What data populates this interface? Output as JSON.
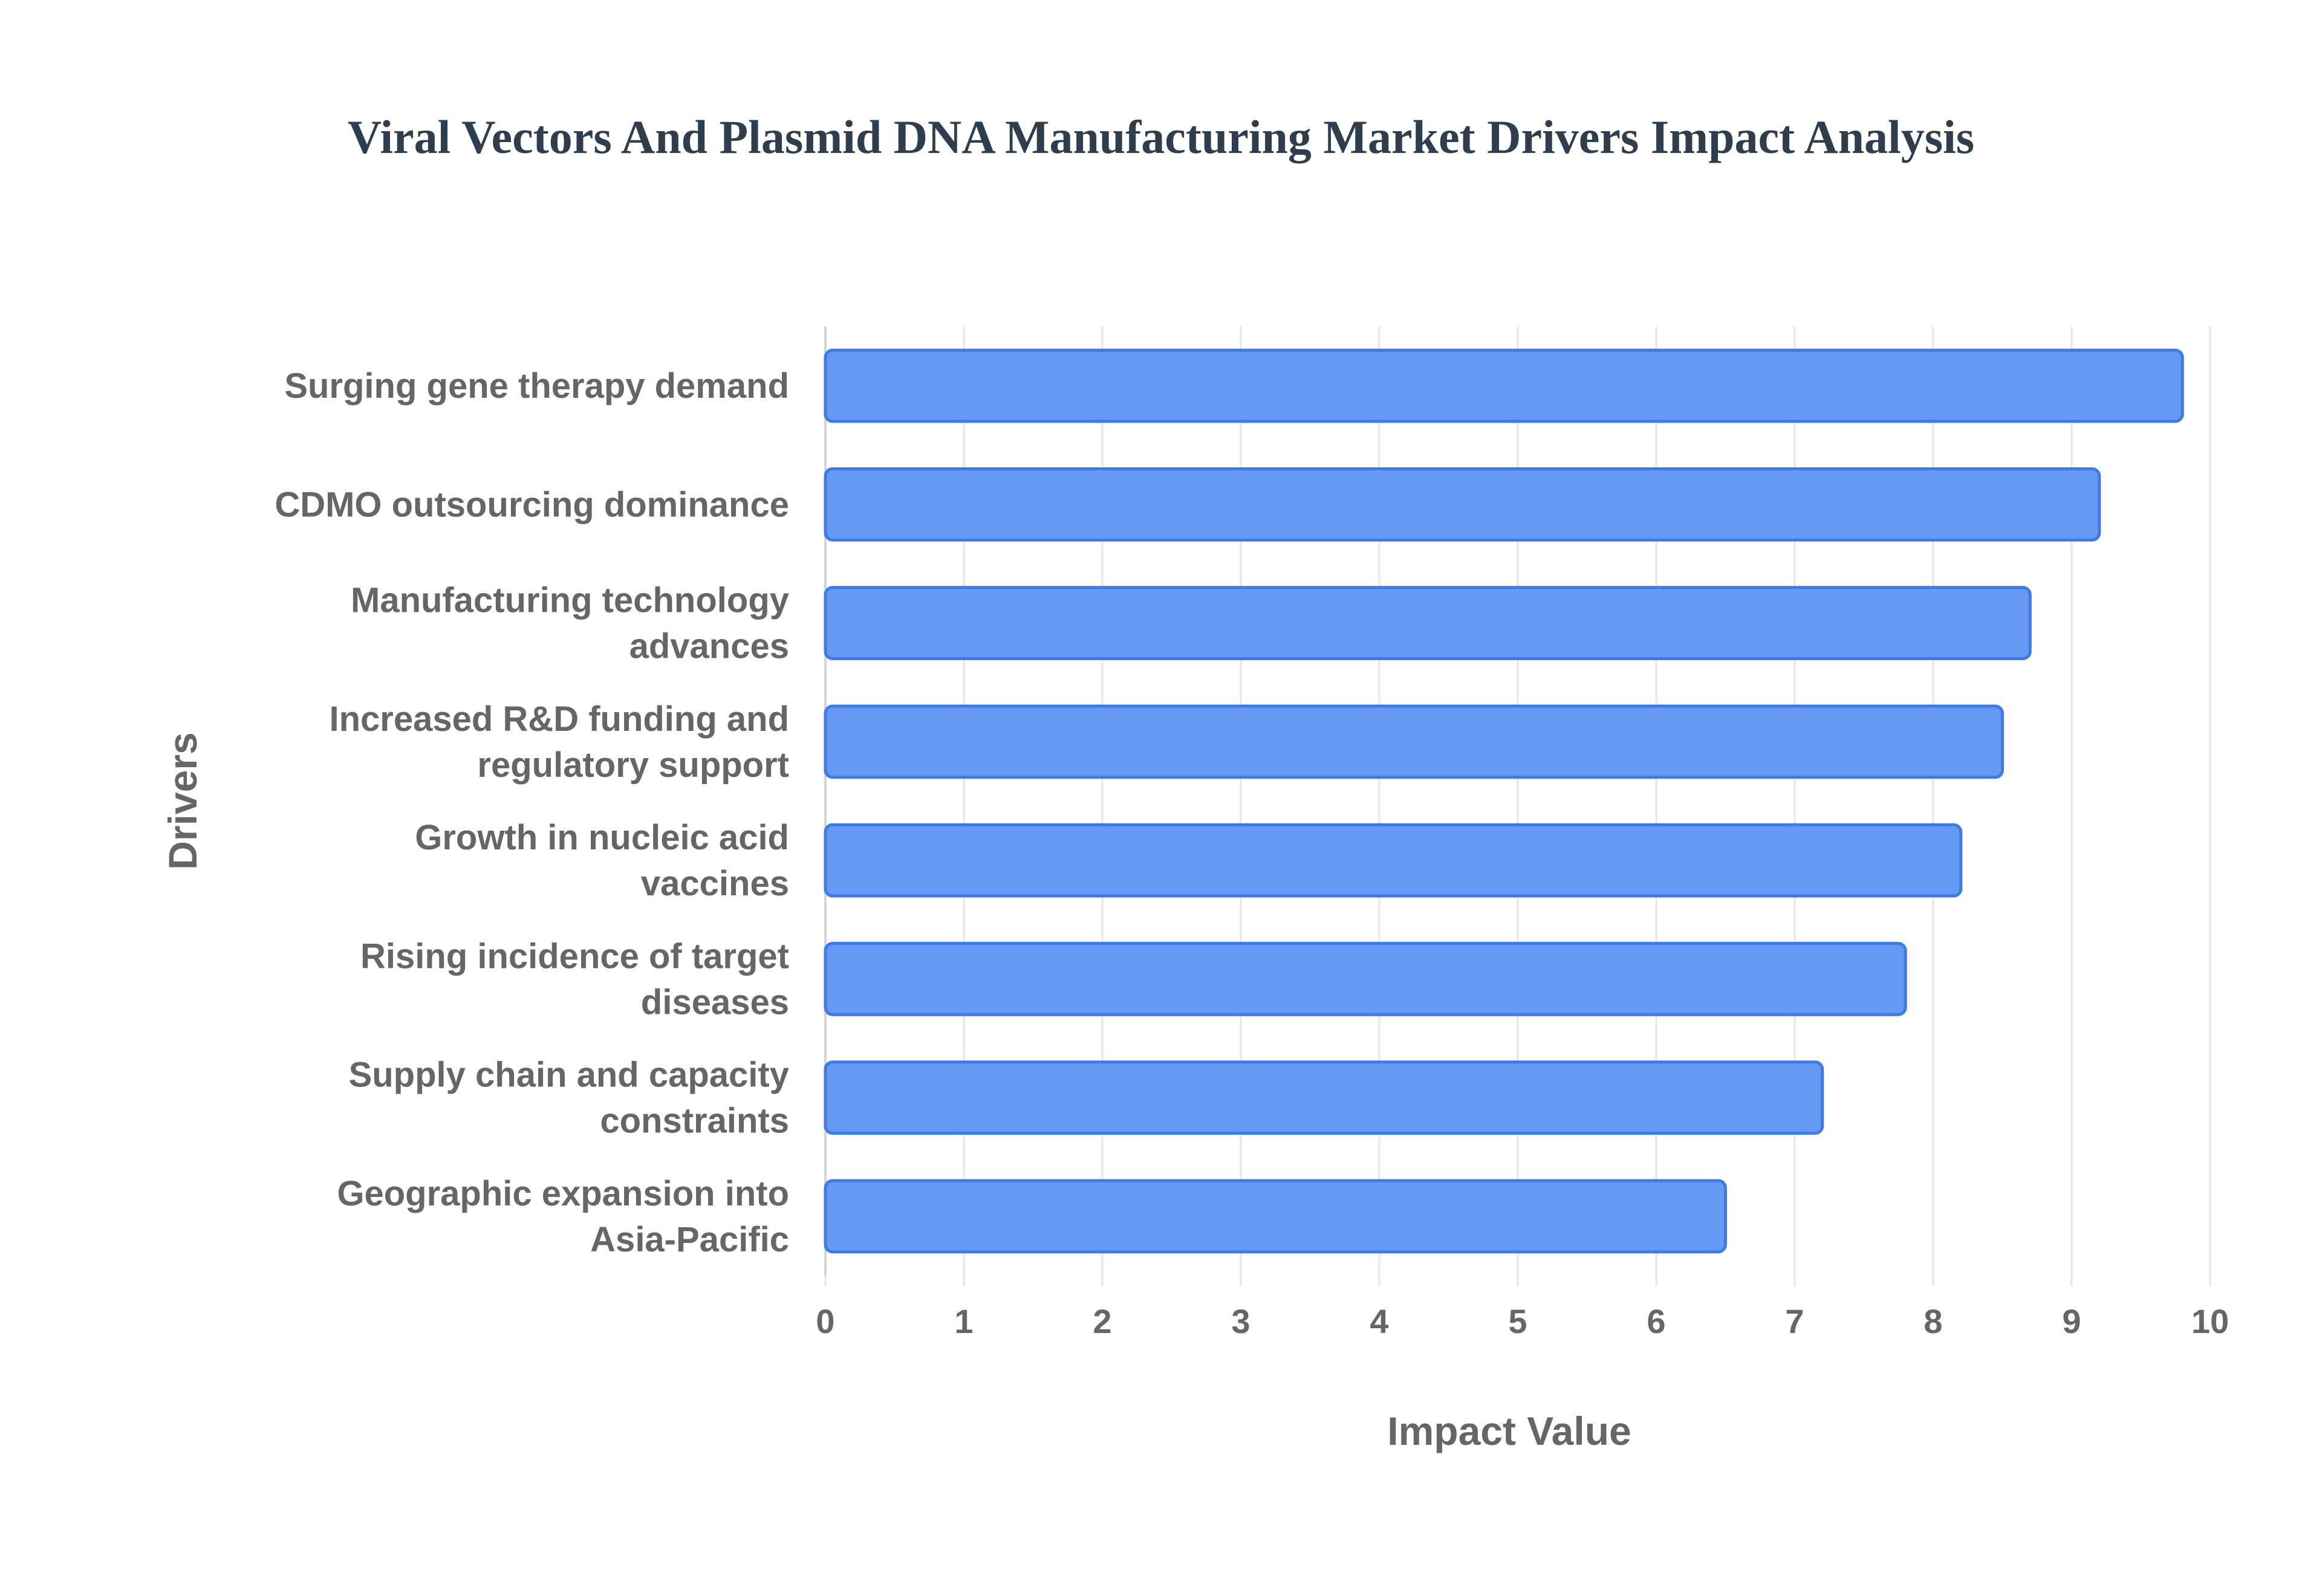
{
  "chart_data": {
    "type": "bar",
    "orientation": "horizontal",
    "title": "Viral Vectors And Plasmid DNA Manufacturing Market Drivers Impact Analysis",
    "xlabel": "Impact Value",
    "ylabel": "Drivers",
    "xlim": [
      0,
      10
    ],
    "xticks": [
      "0",
      "1",
      "2",
      "3",
      "4",
      "5",
      "6",
      "7",
      "8",
      "9",
      "10"
    ],
    "grid": true,
    "bar_color": "#6499f4",
    "bar_edge_color": "#3f7ae6",
    "categories": [
      [
        "Surging gene therapy demand"
      ],
      [
        "CDMO outsourcing dominance"
      ],
      [
        "Manufacturing technology",
        "advances"
      ],
      [
        "Increased R&D funding and",
        "regulatory support"
      ],
      [
        "Growth in nucleic acid",
        "vaccines"
      ],
      [
        "Rising incidence of target",
        "diseases"
      ],
      [
        "Supply chain and capacity",
        "constraints"
      ],
      [
        "Geographic expansion into",
        "Asia-Pacific"
      ]
    ],
    "values": [
      9.8,
      9.2,
      8.7,
      8.5,
      8.2,
      7.8,
      7.2,
      6.5
    ]
  }
}
